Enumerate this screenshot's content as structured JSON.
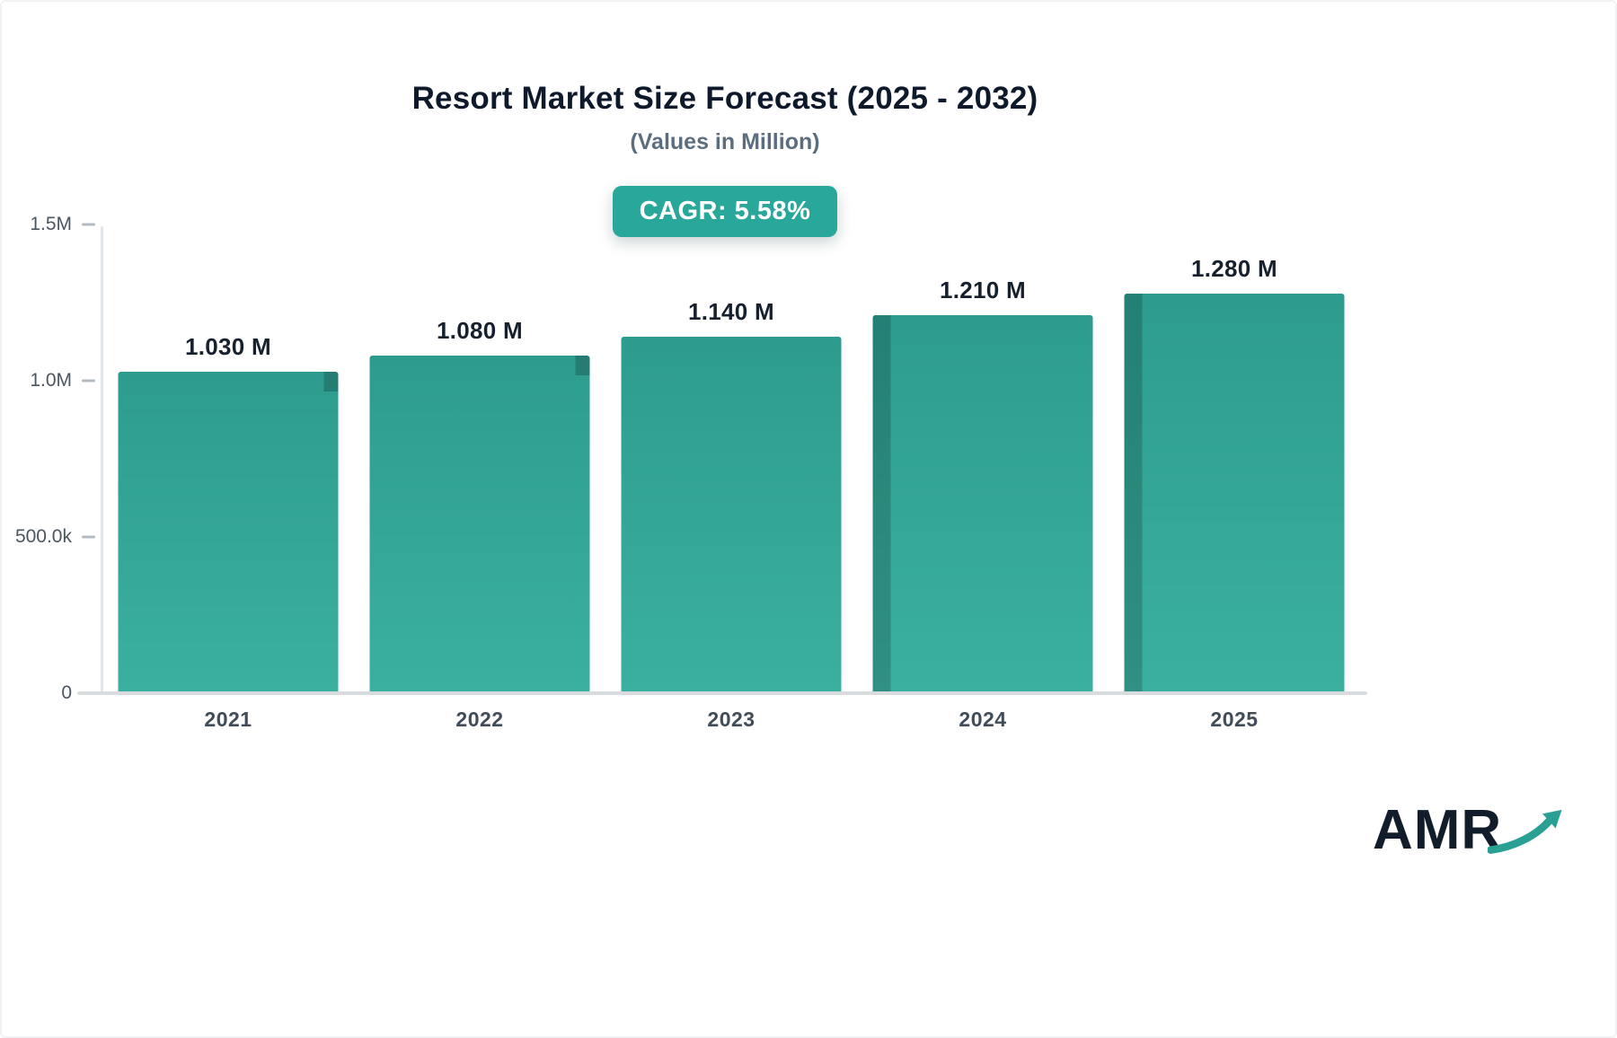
{
  "header": {
    "title": "Resort Market Size Forecast (2025 - 2032)",
    "subtitle": "(Values in Million)",
    "cagr_badge": "CAGR: 5.58%"
  },
  "chart_data": {
    "type": "bar",
    "title": "Resort Market Size Forecast (2025 - 2032)",
    "subtitle": "(Values in Million)",
    "cagr_annotation": "CAGR: 5.58%",
    "categories": [
      "2021",
      "2022",
      "2023",
      "2024",
      "2025"
    ],
    "values": [
      1030000,
      1080000,
      1140000,
      1210000,
      1280000
    ],
    "value_labels": [
      "1.030 M",
      "1.080 M",
      "1.140 M",
      "1.210 M",
      "1.280 M"
    ],
    "ylim": [
      0,
      1500000
    ],
    "yticks": [
      {
        "label": "1.5M",
        "value": 1500000
      },
      {
        "label": "1.0M",
        "value": 1000000
      },
      {
        "label": "500.0k",
        "value": 500000
      },
      {
        "label": "0",
        "value": 0
      }
    ],
    "xlabel": "",
    "ylabel": "",
    "grid": false,
    "legend": null
  },
  "branding": {
    "logo_text": "AMR"
  },
  "colors": {
    "bar_top": "#2d9c8f",
    "bar_bottom": "#3bb0a0",
    "badge_bg": "#2aa79b",
    "accent": "#2aa095"
  }
}
